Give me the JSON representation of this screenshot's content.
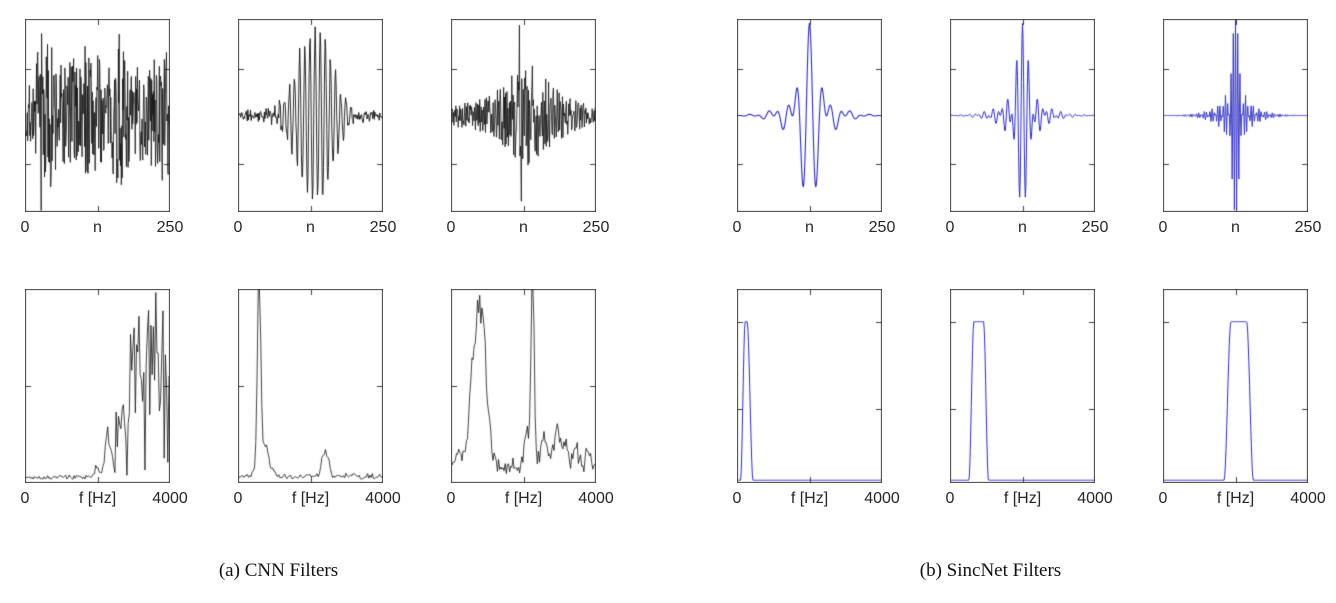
{
  "chart_data": {
    "type": "line",
    "description": "Examples of learned filters: time-domain impulse responses (top row) and corresponding magnitude frequency responses (bottom row) for a standard CNN (black) and SincNet (blue).",
    "frame_color": "#3f3f3f",
    "label_color": "#262626",
    "axes": {
      "time": {
        "x_min_label": "0",
        "x_label": "n",
        "x_max_label": "250",
        "xlim": [
          0,
          250
        ]
      },
      "freq": {
        "x_min_label": "0",
        "x_label": "f [Hz]",
        "x_max_label": "4000",
        "xlim": [
          0,
          4000
        ]
      }
    },
    "groups": [
      {
        "name": "CNN Filters",
        "caption": "(a) CNN Filters",
        "line_color": "#121212",
        "subplots": {
          "time": [
            {
              "domain": "time",
              "kind": "noise_dense",
              "seed": 7,
              "n": 340,
              "step": 18,
              "base_amp": 0.3,
              "env_amp": 0.7,
              "yscale": 1.0,
              "yticks": [
                0.26,
                0.75
              ],
              "lw": 0.8,
              "desc": "broadband noise-like impulse response filling the axis"
            },
            {
              "domain": "time",
              "kind": "gabor",
              "seed": 11,
              "n": 260,
              "center": 0.53,
              "sigma": 0.115,
              "freq": 28,
              "amp": 0.97,
              "noise": 0.05,
              "noise_env": {
                "center": 0.45,
                "sigma": 0.3,
                "amp": 0.08
              },
              "yscale": 0.95,
              "yticks": [
                0.26,
                0.75
              ],
              "lw": 0.9,
              "desc": "oscillatory wavelet centered near n=130"
            },
            {
              "domain": "time",
              "kind": "noisy_burst_spike",
              "seed": 5,
              "n": 300,
              "floor": 0.13,
              "burst": {
                "center": 0.52,
                "sigma": 0.16,
                "amp": 0.4
              },
              "spikes": [
                {
                  "pos": 0.47,
                  "amp": 1.0
                },
                {
                  "pos": 0.482,
                  "amp": -0.95
                },
                {
                  "pos": 0.53,
                  "amp": -0.55
                },
                {
                  "pos": 0.56,
                  "amp": 0.55
                },
                {
                  "pos": 0.6,
                  "amp": -0.45
                }
              ],
              "yscale": 0.95,
              "yticks": [
                0.26,
                0.75
              ],
              "lw": 0.8,
              "desc": "noisy response with sharp spike near the center"
            }
          ],
          "freq": [
            {
              "domain": "freq",
              "kind": "spectrum_hf",
              "seed": 21,
              "n": 120,
              "floor": 0.02,
              "bumps": [
                {
                  "c": 0.5,
                  "s": 0.013,
                  "a": 0.08
                },
                {
                  "c": 0.565,
                  "s": 0.016,
                  "a": 0.2
                },
                {
                  "c": 0.6,
                  "s": 0.012,
                  "a": 0.13
                }
              ],
              "mass": {
                "start": 0.63,
                "ramp_end": 0.8,
                "base": 0.45,
                "peak": 1.0
              },
              "yticks": [
                0.5
              ],
              "lw": 0.8,
              "desc": "energy spread over high frequencies 2500-4000 Hz, jagged"
            },
            {
              "domain": "freq",
              "kind": "spectrum_peaks",
              "seed": 3,
              "n": 120,
              "floor": 0.015,
              "fnoise": 0.02,
              "jitter": 0.3,
              "peaks": [
                {
                  "c": 0.14,
                  "s": 0.01,
                  "a": 1.0,
                  "j": 0.0
                },
                {
                  "c": 0.155,
                  "s": 0.028,
                  "a": 0.22
                },
                {
                  "c": 0.2,
                  "s": 0.012,
                  "a": 0.1
                },
                {
                  "c": 0.24,
                  "s": 0.01,
                  "a": 0.06
                },
                {
                  "c": 0.61,
                  "s": 0.018,
                  "a": 0.15
                },
                {
                  "c": 0.58,
                  "s": 0.01,
                  "a": 0.07
                }
              ],
              "yticks": [
                0.5
              ],
              "lw": 0.8,
              "desc": "sharp peak near 560 Hz, small bump near 2450 Hz"
            },
            {
              "domain": "freq",
              "kind": "spectrum_peaks",
              "seed": 9,
              "n": 130,
              "floor": 0.04,
              "fnoise": 0.06,
              "jitter": 0.45,
              "peaks": [
                {
                  "c": 0.185,
                  "s": 0.045,
                  "a": 0.92,
                  "j": 0.25
                },
                {
                  "c": 0.225,
                  "s": 0.018,
                  "a": 0.3
                },
                {
                  "c": 0.565,
                  "s": 0.01,
                  "a": 1.05,
                  "j": 0.05
                },
                {
                  "c": 0.535,
                  "s": 0.022,
                  "a": 0.25
                },
                {
                  "c": 0.045,
                  "s": 0.018,
                  "a": 0.14
                },
                {
                  "c": 0.64,
                  "s": 0.025,
                  "a": 0.2
                },
                {
                  "c": 0.73,
                  "s": 0.022,
                  "a": 0.26
                },
                {
                  "c": 0.79,
                  "s": 0.018,
                  "a": 0.18
                },
                {
                  "c": 0.87,
                  "s": 0.02,
                  "a": 0.15
                },
                {
                  "c": 0.95,
                  "s": 0.015,
                  "a": 0.1
                }
              ],
              "yticks": [
                0.5
              ],
              "lw": 0.8,
              "desc": "broad peak near 750 Hz and narrow tall peak near 2250 Hz"
            }
          ]
        }
      },
      {
        "name": "SincNet Filters",
        "caption": "(b) SincNet Filters",
        "line_color": "#2a2ac4",
        "subplots": {
          "time": [
            {
              "domain": "time",
              "kind": "sinc_bandpass",
              "n": 257,
              "f1": 0.026,
              "f2": 0.058,
              "yscale": 0.97,
              "yticks": [
                0.26,
                0.75
              ],
              "lw": 1.1,
              "desc": "smooth low-frequency windowed-sinc band-pass wavelet"
            },
            {
              "domain": "time",
              "kind": "sinc_bandpass",
              "n": 257,
              "f1": 0.07,
              "f2": 0.12,
              "yscale": 0.97,
              "yticks": [
                0.26,
                0.75
              ],
              "lw": 1.0,
              "desc": "mid-frequency windowed-sinc band-pass wavelet"
            },
            {
              "domain": "time",
              "kind": "sinc_bandpass",
              "n": 257,
              "f1": 0.21,
              "f2": 0.292,
              "yscale": 1.04,
              "yticks": [
                0.26,
                0.75
              ],
              "lw": 0.9,
              "desc": "high-frequency windowed-sinc band-pass wavelet, tightly concentrated"
            }
          ],
          "freq": [
            {
              "domain": "freq",
              "kind": "trapezoid",
              "n": 220,
              "x0": 0.018,
              "x1": 0.05,
              "x2": 0.064,
              "x3": 0.105,
              "h": 0.83,
              "yticks": [
                0.17,
                0.62
              ],
              "lw": 1.0,
              "desc": "narrow band-pass approx 150-400 Hz"
            },
            {
              "domain": "freq",
              "kind": "trapezoid",
              "n": 220,
              "x0": 0.125,
              "x1": 0.16,
              "x2": 0.228,
              "x3": 0.262,
              "h": 0.83,
              "yticks": [
                0.17,
                0.62
              ],
              "lw": 1.0,
              "desc": "band-pass approx 550-1000 Hz with flat top"
            },
            {
              "domain": "freq",
              "kind": "trapezoid",
              "n": 220,
              "x0": 0.42,
              "x1": 0.468,
              "x2": 0.578,
              "x3": 0.625,
              "h": 0.83,
              "yticks": [
                0.17,
                0.62
              ],
              "lw": 1.0,
              "desc": "band-pass approx 1700-2450 Hz with flat top"
            }
          ]
        }
      }
    ]
  }
}
